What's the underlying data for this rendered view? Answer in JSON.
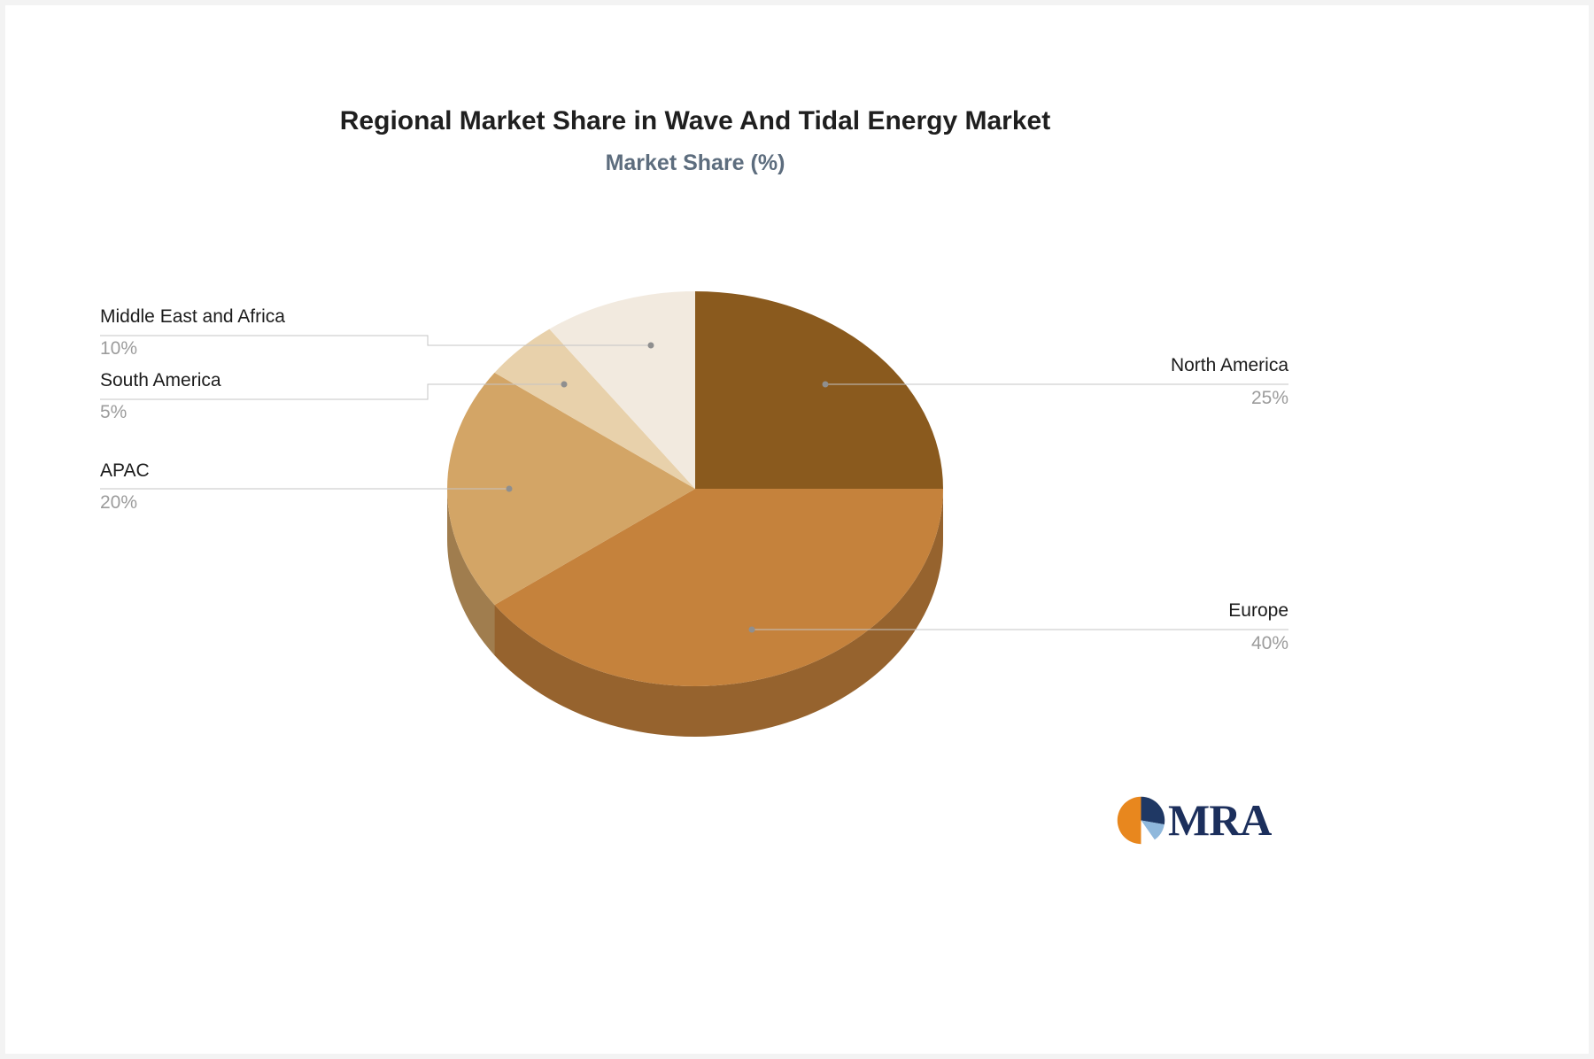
{
  "chart_data": {
    "type": "pie",
    "title": "Regional Market Share in Wave And Tidal Energy Market",
    "subtitle": "Market Share (%)",
    "unit": "%",
    "effect": "3d",
    "start_angle_deg": 0,
    "direction": "clockwise",
    "legend_position": "callout-labels",
    "categories": [
      "North America",
      "Europe",
      "APAC",
      "South America",
      "Middle East and Africa"
    ],
    "values": [
      25,
      40,
      20,
      5,
      10
    ],
    "value_labels": [
      "25%",
      "40%",
      "20%",
      "5%",
      "10%"
    ],
    "colors": [
      "#8A5A1E",
      "#C5823C",
      "#D3A566",
      "#E8D1AB",
      "#F2EADF"
    ],
    "label_color": "#1c1c1c",
    "value_label_color": "#9c9c9c",
    "leader_line_color": "#c4c4c4"
  },
  "branding": {
    "logo_text": "MRA",
    "logo_colors": [
      "#E8871E",
      "#1F3864",
      "#8FB8DC"
    ]
  }
}
